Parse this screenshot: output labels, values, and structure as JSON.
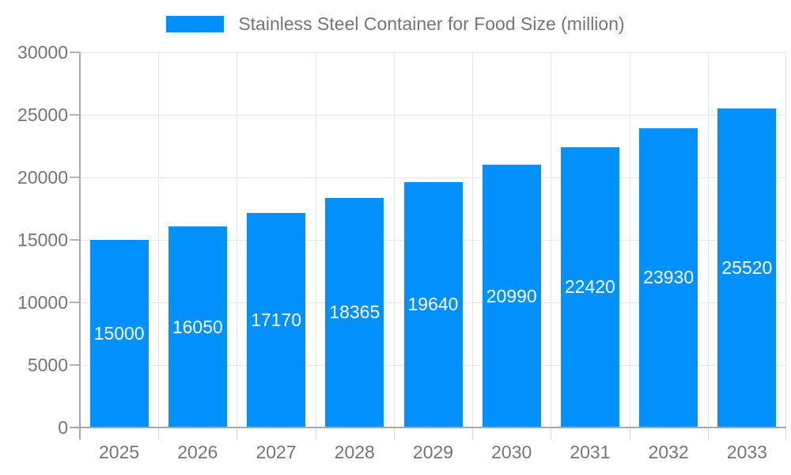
{
  "legend": {
    "label": "Stainless Steel Container for Food Size (million)"
  },
  "colors": {
    "bar": "#0290FB",
    "axis": "#A8A8A8",
    "grid": "#E6E6E6",
    "tick": "#B4B4B4",
    "xtick": "#D6D6D6",
    "text": "#757575",
    "bar_label": "#FFFFFF",
    "background": "#FFFFFF"
  },
  "chart_data": {
    "type": "bar",
    "title": "Stainless Steel Container for Food Size (million)",
    "categories": [
      "2025",
      "2026",
      "2027",
      "2028",
      "2029",
      "2030",
      "2031",
      "2032",
      "2033"
    ],
    "values": [
      15000,
      16050,
      17170,
      18365,
      19640,
      20990,
      22420,
      23930,
      25520
    ],
    "xlabel": "",
    "ylabel": "",
    "ylim": [
      0,
      30000
    ],
    "yticks": [
      0,
      5000,
      10000,
      15000,
      20000,
      25000,
      30000
    ],
    "grid": "horizontal-and-vertical",
    "legend_position": "top",
    "bar_label_position": "inside-middle",
    "bar_label_color": "#FFFFFF"
  }
}
